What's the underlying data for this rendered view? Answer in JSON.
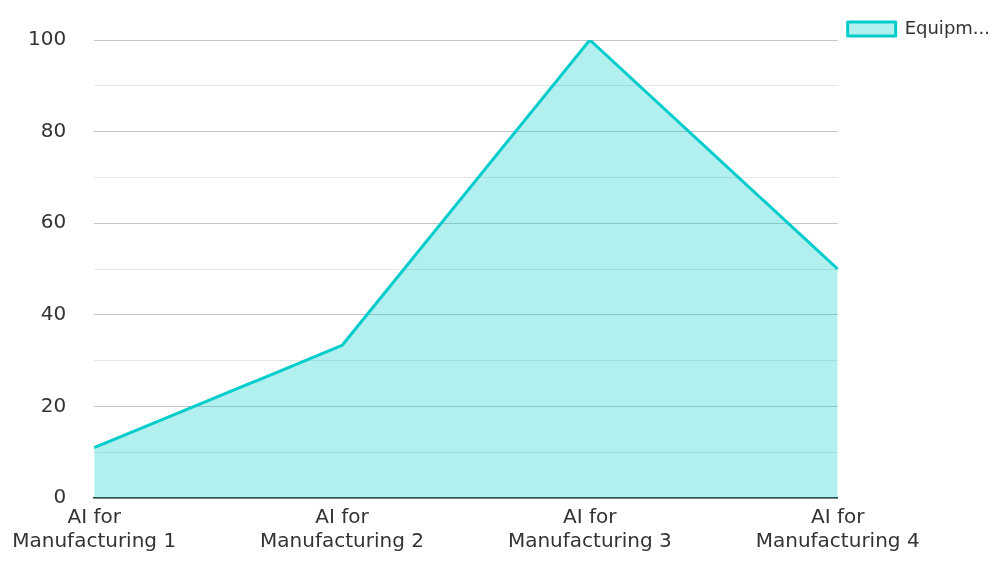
{
  "chart_data": {
    "type": "area",
    "categories": [
      "AI for Manufacturing 1",
      "AI for Manufacturing 2",
      "AI for Manufacturing 3",
      "AI for Manufacturing 4"
    ],
    "series": [
      {
        "name": "Equipm...",
        "color": "#00cccc",
        "values": [
          11,
          33.3,
          100,
          50
        ]
      }
    ],
    "ylim": [
      0,
      100
    ],
    "yticks": [
      0,
      {
        "value": 10,
        "label": null
      },
      20,
      {
        "value": 30,
        "label": null
      },
      40,
      {
        "value": 50,
        "label": null
      },
      60,
      {
        "value": 70,
        "label": null
      },
      80,
      {
        "value": 90,
        "label": null
      },
      100
    ],
    "grid": "y",
    "legend": "top right"
  }
}
